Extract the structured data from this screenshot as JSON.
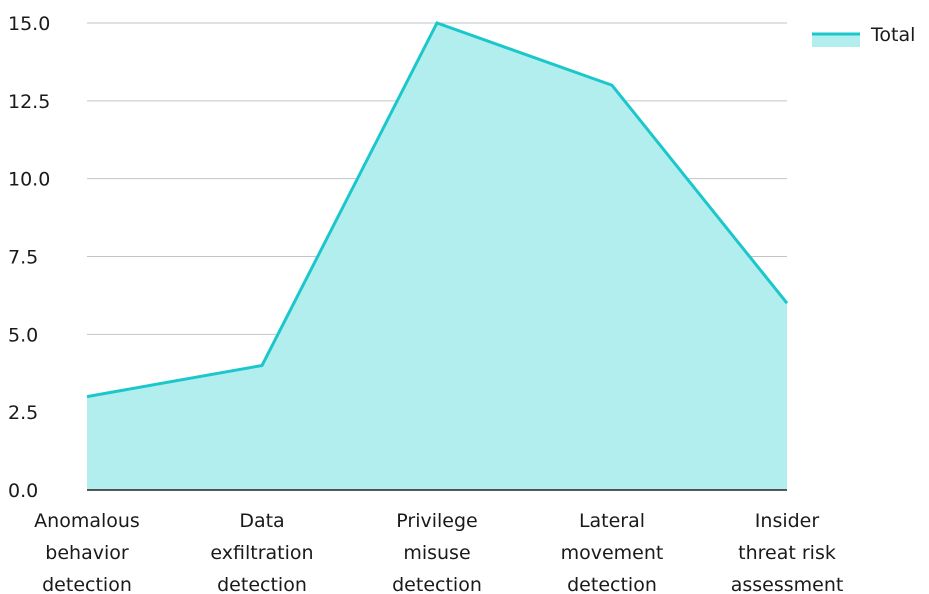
{
  "chart_data": {
    "type": "area",
    "categories": [
      [
        "Anomalous",
        "behavior",
        "detection"
      ],
      [
        "Data",
        "exfiltration",
        "detection"
      ],
      [
        "Privilege",
        "misuse",
        "detection"
      ],
      [
        "Lateral",
        "movement",
        "detection"
      ],
      [
        "Insider",
        "threat risk",
        "assessment"
      ]
    ],
    "series": [
      {
        "name": "Total",
        "values": [
          3,
          4,
          15,
          13,
          6
        ]
      }
    ],
    "ylim": [
      0,
      15
    ],
    "yticks": [
      "0.0",
      "2.5",
      "5.0",
      "7.5",
      "10.0",
      "12.5",
      "15.0"
    ],
    "ytick_values": [
      0,
      2.5,
      5,
      7.5,
      10,
      12.5,
      15
    ],
    "grid": true,
    "legend_position": "top-right",
    "colors": {
      "line": "#1CC7CC",
      "fill": "#B2EEEE",
      "grid": "#BFC5C8",
      "axis": "#222222"
    }
  }
}
